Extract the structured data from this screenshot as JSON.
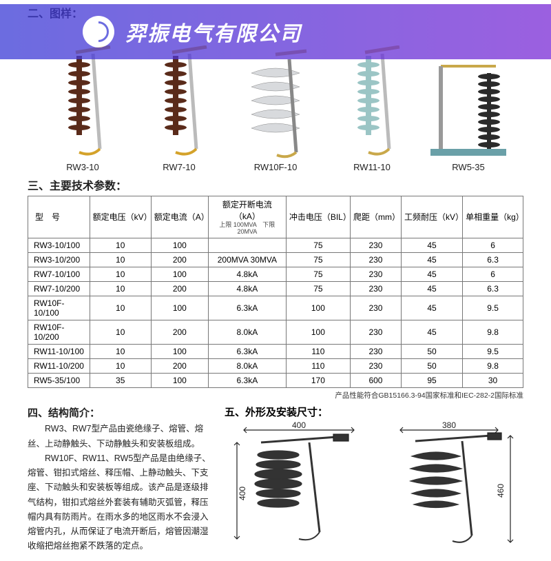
{
  "header": {
    "company": "羿振电气有限公司"
  },
  "sections": {
    "images_title": "二、图样：",
    "params_title": "三、主要技术参数：",
    "structure_title": "四、结构简介：",
    "dims_title": "五、外形及安装尺寸："
  },
  "products": [
    {
      "label": "RW3-10",
      "body_color": "#5a2b1a",
      "arm_color": "#d4a22a",
      "shape": "ribbed"
    },
    {
      "label": "RW7-10",
      "body_color": "#5a2b1a",
      "arm_color": "#d4a22a",
      "shape": "ribbed"
    },
    {
      "label": "RW10F-10",
      "body_color": "#d8dadd",
      "arm_color": "#c9a84a",
      "shape": "wide"
    },
    {
      "label": "RW11-10",
      "body_color": "#9bc5c5",
      "arm_color": "#c9a84a",
      "shape": "ribbed"
    },
    {
      "label": "RW5-35",
      "body_color": "#2a2a2a",
      "arm_color": "#c9a84a",
      "shape": "frame"
    }
  ],
  "table": {
    "headers": [
      "型　号",
      "额定电压（kV）",
      "额定电流（A）",
      "额定开断电流（kA）",
      "冲击电压（BIL）",
      "爬距（mm）",
      "工频耐压（kV）",
      "单相重量（kg）"
    ],
    "sub_headers": {
      "break_upper": "上限 100MVA",
      "break_lower": "下限 20MVA"
    },
    "rows": [
      [
        "RW3-10/100",
        "10",
        "100",
        "",
        "75",
        "230",
        "45",
        "6"
      ],
      [
        "RW3-10/200",
        "10",
        "200",
        "200MVA  30MVA",
        "75",
        "230",
        "45",
        "6.3"
      ],
      [
        "RW7-10/100",
        "10",
        "100",
        "4.8kA",
        "75",
        "230",
        "45",
        "6"
      ],
      [
        "RW7-10/200",
        "10",
        "200",
        "4.8kA",
        "75",
        "230",
        "45",
        "6.3"
      ],
      [
        "RW10F-10/100",
        "10",
        "100",
        "6.3kA",
        "100",
        "230",
        "45",
        "9.5"
      ],
      [
        "RW10F-10/200",
        "10",
        "200",
        "8.0kA",
        "100",
        "230",
        "45",
        "9.8"
      ],
      [
        "RW11-10/100",
        "10",
        "100",
        "6.3kA",
        "110",
        "230",
        "50",
        "9.5"
      ],
      [
        "RW11-10/200",
        "10",
        "200",
        "8.0kA",
        "110",
        "230",
        "50",
        "9.8"
      ],
      [
        "RW5-35/100",
        "35",
        "100",
        "6.3kA",
        "170",
        "600",
        "95",
        "30"
      ]
    ]
  },
  "footnote": "产品性能符合GB15166.3-94国家标准和IEC-282-2国际标准",
  "description": "　　RW3、RW7型产品由瓷绝缘子、熔管、熔丝、上动静触头、下动静触头和安装板组成。\n　　RW10F、RW11、RW5型产品是由绝缘子、熔管、钳扣式熔丝、释压帽、上静动触头、下支座、下动触头和安装板等组成。该产品是逐级排气结构，钳扣式熔丝外套装有辅助灭弧管，释压帽内具有防雨片。在雨水多的地区雨水不会浸入熔管内孔，从而保证了电流开断后，熔管因潮湿收缩把熔丝抱紧不跌落的定点。",
  "dimensions": {
    "left": {
      "w": "400",
      "h": "400"
    },
    "right": {
      "w": "380",
      "h": "460"
    }
  },
  "colors": {
    "border": "#777777",
    "text": "#222222",
    "header_grad_from": "#3b3bd6",
    "header_grad_to": "#7a2bd6"
  }
}
